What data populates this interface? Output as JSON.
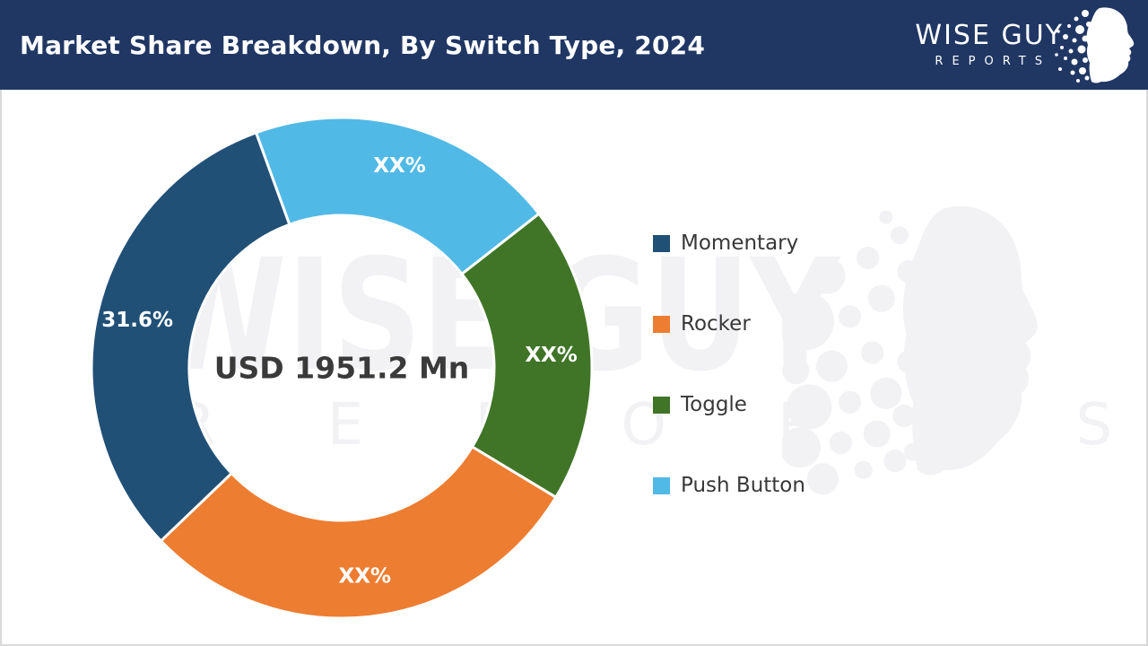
{
  "header": {
    "title": "Market Share Breakdown, By Switch Type, 2024",
    "logo": {
      "line1": "WISE GUY",
      "line2": "REPORTS"
    }
  },
  "watermark": {
    "line1": "WISE GUY",
    "line2": "R E P O R T S"
  },
  "chart_data": {
    "type": "pie",
    "subtype": "donut",
    "title": "Market Share Breakdown, By Switch Type, 2024",
    "center_label": "USD 1951.2 Mn",
    "units": "percent market share",
    "start_angle_deg": 110,
    "direction": "counterclockwise",
    "legend_position": "right",
    "segments": [
      {
        "label": "Momentary",
        "display_value": "31.6%",
        "value": 31.6,
        "color": "#215077"
      },
      {
        "label": "Rocker",
        "display_value": "XX%",
        "value": 29.2,
        "color": "#ED7D31"
      },
      {
        "label": "Toggle",
        "display_value": "XX%",
        "value": 19.2,
        "color": "#407528"
      },
      {
        "label": "Push Button",
        "display_value": "XX%",
        "value": 20.0,
        "color": "#51B9E6"
      }
    ]
  },
  "colors": {
    "header_bg": "#203764",
    "canvas_border": "#D9D9D9",
    "watermark": "#F2F2F5",
    "center_text": "#3A3A3A",
    "slice_label_text": "#FFFFFF",
    "legend_text": "#383838"
  }
}
